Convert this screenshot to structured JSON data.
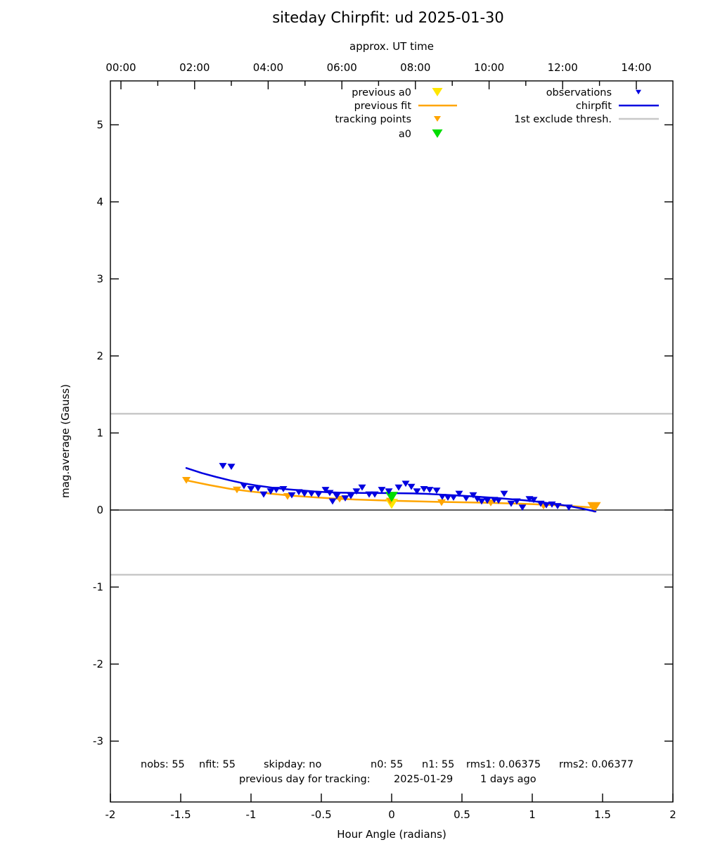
{
  "title": "siteday Chirpfit:  ud  2025-01-30",
  "axes": {
    "top_label": "approx. UT time",
    "bottom_label": "Hour Angle (radians)",
    "left_label": "mag.average (Gauss)"
  },
  "legend": {
    "left_items": [
      {
        "label": "previous a0",
        "marker": "triangle-big",
        "color": "#ffe600"
      },
      {
        "label": "previous fit",
        "marker": "line",
        "color": "#ffa500"
      },
      {
        "label": "tracking points",
        "marker": "triangle-small",
        "color": "#ffa500"
      },
      {
        "label": "a0",
        "marker": "triangle-big",
        "color": "#00dd00"
      }
    ],
    "right_items": [
      {
        "label": "observations",
        "marker": "triangle-tiny",
        "color": "#0000e0"
      },
      {
        "label": "chirpfit",
        "marker": "line",
        "color": "#0000e0"
      },
      {
        "label": "1st exclude thresh.",
        "marker": "line",
        "color": "#c8c8c8"
      }
    ]
  },
  "stats": {
    "nobs": "nobs: 55",
    "nfit": "nfit: 55",
    "skipday": "skipday: no",
    "n0": "n0: 55",
    "n1": "n1: 55",
    "rms1": "rms1: 0.06375",
    "rms2": "rms2: 0.06377",
    "tracking_label": "previous day for tracking:",
    "tracking_date": "2025-01-29",
    "tracking_ago": "1 days ago"
  },
  "colors": {
    "observations": "#0000e0",
    "chirpfit": "#0000e0",
    "previous_fit": "#ffa500",
    "tracking_points": "#ffa500",
    "previous_a0": "#ffe600",
    "a0": "#00dd00",
    "exclude_threshold": "#c8c8c8",
    "axis": "#000000"
  },
  "chart_data": {
    "type": "scatter",
    "title": "siteday Chirpfit:  ud  2025-01-30",
    "xlabel": "Hour Angle (radians)",
    "ylabel": "mag.average (Gauss)",
    "x2label": "approx. UT time",
    "xlim": [
      -2,
      2
    ],
    "ylim": [
      -3.79,
      5.57
    ],
    "x_ticks": [
      {
        "v": -2,
        "label": "-2"
      },
      {
        "v": -1.5,
        "label": "-1.5"
      },
      {
        "v": -1,
        "label": "-1"
      },
      {
        "v": -0.5,
        "label": "-0.5"
      },
      {
        "v": 0,
        "label": "0"
      },
      {
        "v": 0.5,
        "label": "0.5"
      },
      {
        "v": 1,
        "label": "1"
      },
      {
        "v": 1.5,
        "label": "1.5"
      },
      {
        "v": 2,
        "label": "2"
      }
    ],
    "y_ticks": [
      {
        "v": -3,
        "label": "-3"
      },
      {
        "v": -2,
        "label": "-2"
      },
      {
        "v": -1,
        "label": "-1"
      },
      {
        "v": 0,
        "label": "0"
      },
      {
        "v": 1,
        "label": "1"
      },
      {
        "v": 2,
        "label": "2"
      },
      {
        "v": 3,
        "label": "3"
      },
      {
        "v": 4,
        "label": "4"
      },
      {
        "v": 5,
        "label": "5"
      }
    ],
    "top_ticks": [
      {
        "v": -1.925,
        "label": "00:00"
      },
      {
        "v": -1.663,
        "label": ""
      },
      {
        "v": -1.401,
        "label": "02:00"
      },
      {
        "v": -1.14,
        "label": ""
      },
      {
        "v": -0.878,
        "label": "04:00"
      },
      {
        "v": -0.616,
        "label": ""
      },
      {
        "v": -0.354,
        "label": "06:00"
      },
      {
        "v": -0.093,
        "label": ""
      },
      {
        "v": 0.169,
        "label": "08:00"
      },
      {
        "v": 0.431,
        "label": ""
      },
      {
        "v": 0.693,
        "label": "10:00"
      },
      {
        "v": 0.954,
        "label": ""
      },
      {
        "v": 1.216,
        "label": "12:00"
      },
      {
        "v": 1.478,
        "label": ""
      },
      {
        "v": 1.74,
        "label": "14:00"
      }
    ],
    "zero_line": 0,
    "exclude_thresholds": [
      1.25,
      -0.84
    ],
    "series": [
      {
        "name": "previous fit",
        "type": "line",
        "color": "#ffa500",
        "width": 2.5,
        "points": [
          [
            -1.46,
            0.385
          ],
          [
            -1.3,
            0.325
          ],
          [
            -1.15,
            0.275
          ],
          [
            -1.0,
            0.24
          ],
          [
            -0.85,
            0.21
          ],
          [
            -0.7,
            0.185
          ],
          [
            -0.55,
            0.165
          ],
          [
            -0.4,
            0.148
          ],
          [
            -0.25,
            0.136
          ],
          [
            -0.1,
            0.126
          ],
          [
            0.05,
            0.118
          ],
          [
            0.2,
            0.112
          ],
          [
            0.35,
            0.105
          ],
          [
            0.5,
            0.1
          ],
          [
            0.65,
            0.095
          ],
          [
            0.8,
            0.088
          ],
          [
            0.95,
            0.08
          ],
          [
            1.1,
            0.068
          ],
          [
            1.25,
            0.055
          ],
          [
            1.44,
            0.032
          ]
        ]
      },
      {
        "name": "previous a0",
        "type": "scatter",
        "marker_size": 9,
        "color": "#ffe600",
        "points": [
          [
            0.0,
            0.08
          ]
        ]
      },
      {
        "name": "tracking points",
        "type": "scatter",
        "marker_size": 6,
        "color": "#ffa500",
        "points": [
          [
            -1.46,
            0.385
          ],
          [
            -1.1,
            0.26
          ],
          [
            -0.74,
            0.175
          ],
          [
            -0.37,
            0.14
          ],
          [
            -0.01,
            0.115
          ],
          [
            0.355,
            0.095
          ],
          [
            0.705,
            0.09
          ],
          [
            1.08,
            0.05
          ],
          [
            1.44,
            0.032,
            1.6
          ]
        ]
      },
      {
        "name": "chirpfit",
        "type": "line",
        "color": "#0000e0",
        "width": 2.5,
        "points": [
          [
            -1.46,
            0.545
          ],
          [
            -1.35,
            0.48
          ],
          [
            -1.25,
            0.43
          ],
          [
            -1.15,
            0.385
          ],
          [
            -1.05,
            0.345
          ],
          [
            -0.95,
            0.315
          ],
          [
            -0.85,
            0.29
          ],
          [
            -0.75,
            0.27
          ],
          [
            -0.65,
            0.255
          ],
          [
            -0.55,
            0.24
          ],
          [
            -0.45,
            0.23
          ],
          [
            -0.35,
            0.225
          ],
          [
            -0.25,
            0.222
          ],
          [
            -0.15,
            0.22
          ],
          [
            -0.05,
            0.22
          ],
          [
            0.05,
            0.218
          ],
          [
            0.15,
            0.215
          ],
          [
            0.25,
            0.21
          ],
          [
            0.35,
            0.2
          ],
          [
            0.45,
            0.19
          ],
          [
            0.55,
            0.18
          ],
          [
            0.65,
            0.168
          ],
          [
            0.75,
            0.155
          ],
          [
            0.85,
            0.14
          ],
          [
            0.95,
            0.125
          ],
          [
            1.05,
            0.105
          ],
          [
            1.15,
            0.08
          ],
          [
            1.25,
            0.055
          ],
          [
            1.35,
            0.02
          ],
          [
            1.45,
            -0.02
          ]
        ]
      },
      {
        "name": "a0",
        "type": "scatter",
        "marker_size": 9,
        "color": "#00dd00",
        "points": [
          [
            0.0,
            0.17
          ]
        ]
      },
      {
        "name": "observations",
        "type": "scatter",
        "marker_size": 5.5,
        "color": "#0000e0",
        "points": [
          [
            -1.2,
            0.57
          ],
          [
            -1.14,
            0.56
          ],
          [
            -1.05,
            0.31
          ],
          [
            -1.0,
            0.27
          ],
          [
            -0.95,
            0.28
          ],
          [
            -0.91,
            0.2
          ],
          [
            -0.86,
            0.24
          ],
          [
            -0.82,
            0.26
          ],
          [
            -0.77,
            0.27
          ],
          [
            -0.71,
            0.19
          ],
          [
            -0.66,
            0.23
          ],
          [
            -0.62,
            0.21
          ],
          [
            -0.57,
            0.21
          ],
          [
            -0.52,
            0.2
          ],
          [
            -0.47,
            0.26
          ],
          [
            -0.44,
            0.22
          ],
          [
            -0.42,
            0.11
          ],
          [
            -0.39,
            0.18
          ],
          [
            -0.33,
            0.15
          ],
          [
            -0.29,
            0.18
          ],
          [
            -0.25,
            0.24
          ],
          [
            -0.21,
            0.29
          ],
          [
            -0.16,
            0.2
          ],
          [
            -0.12,
            0.2
          ],
          [
            -0.07,
            0.26
          ],
          [
            -0.02,
            0.24
          ],
          [
            0.05,
            0.29
          ],
          [
            0.1,
            0.34
          ],
          [
            0.14,
            0.3
          ],
          [
            0.18,
            0.24
          ],
          [
            0.23,
            0.27
          ],
          [
            0.27,
            0.26
          ],
          [
            0.32,
            0.25
          ],
          [
            0.36,
            0.17
          ],
          [
            0.4,
            0.16
          ],
          [
            0.44,
            0.16
          ],
          [
            0.48,
            0.21
          ],
          [
            0.53,
            0.15
          ],
          [
            0.58,
            0.19
          ],
          [
            0.61,
            0.14
          ],
          [
            0.64,
            0.11
          ],
          [
            0.68,
            0.12
          ],
          [
            0.73,
            0.13
          ],
          [
            0.76,
            0.12
          ],
          [
            0.8,
            0.21
          ],
          [
            0.85,
            0.08
          ],
          [
            0.89,
            0.11
          ],
          [
            0.93,
            0.03
          ],
          [
            0.98,
            0.14
          ],
          [
            1.01,
            0.13
          ],
          [
            1.06,
            0.08
          ],
          [
            1.1,
            0.06
          ],
          [
            1.14,
            0.07
          ],
          [
            1.18,
            0.05
          ],
          [
            1.26,
            0.03
          ]
        ]
      }
    ],
    "legend_position": "top-center",
    "grid": false
  }
}
